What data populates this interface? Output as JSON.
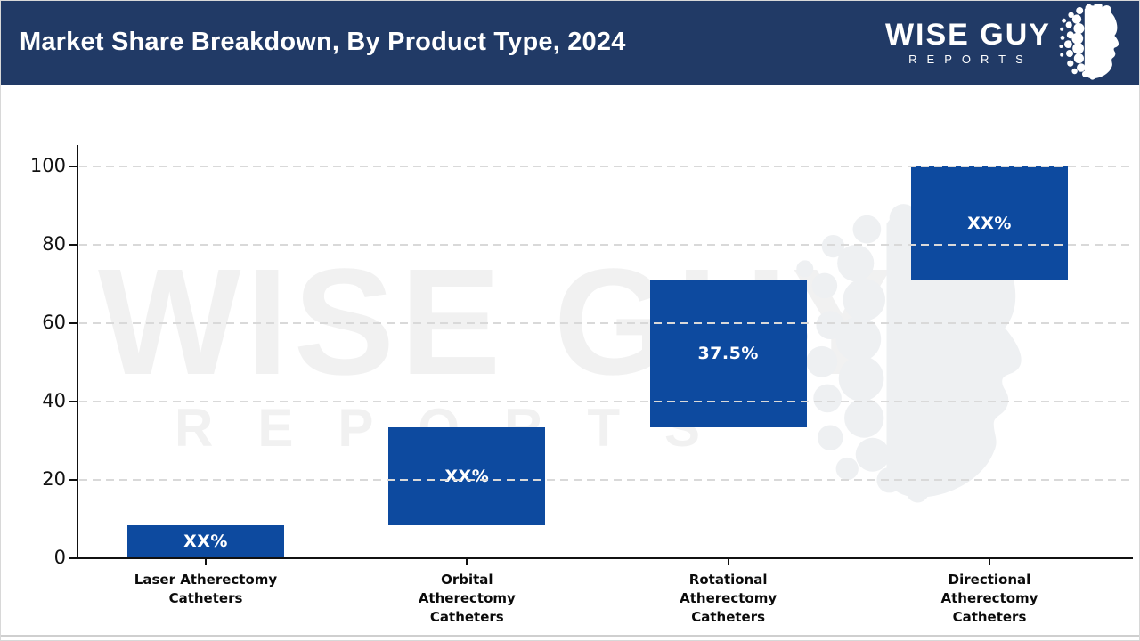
{
  "header": {
    "title": "Market Share Breakdown, By Product Type, 2024",
    "bg_color": "#213a66",
    "logo": {
      "line1": "WISE GUY",
      "line2": "REPORTS"
    }
  },
  "watermark": {
    "line1": "WISE GUY",
    "line2": "REPORTS"
  },
  "chart_data": {
    "type": "bar",
    "subtype": "waterfall",
    "title": "Market Share Breakdown, By Product Type, 2024",
    "categories": [
      "Laser Atherectomy\nCatheters",
      "Orbital\nAtherectomy\nCatheters",
      "Rotational\nAtherectomy\nCatheters",
      "Directional\nAtherectomy\nCatheters"
    ],
    "bars": [
      {
        "category": "Laser Atherectomy Catheters",
        "label": "XX%",
        "start": 0,
        "end": 8.5
      },
      {
        "category": "Orbital Atherectomy Catheters",
        "label": "XX%",
        "start": 8.5,
        "end": 33.5
      },
      {
        "category": "Rotational Atherectomy Catheters",
        "label": "37.5%",
        "start": 33.5,
        "end": 71
      },
      {
        "category": "Directional Atherectomy Catheters",
        "label": "XX%",
        "start": 71,
        "end": 100
      }
    ],
    "yticks": [
      0,
      20,
      40,
      60,
      80,
      100
    ],
    "ylim": [
      0,
      105
    ],
    "xlabel": "",
    "ylabel": "",
    "bar_color": "#0d4a9f",
    "grid": "horizontal-dashed",
    "grid_color": "#d9d9d9",
    "legend": "none"
  }
}
